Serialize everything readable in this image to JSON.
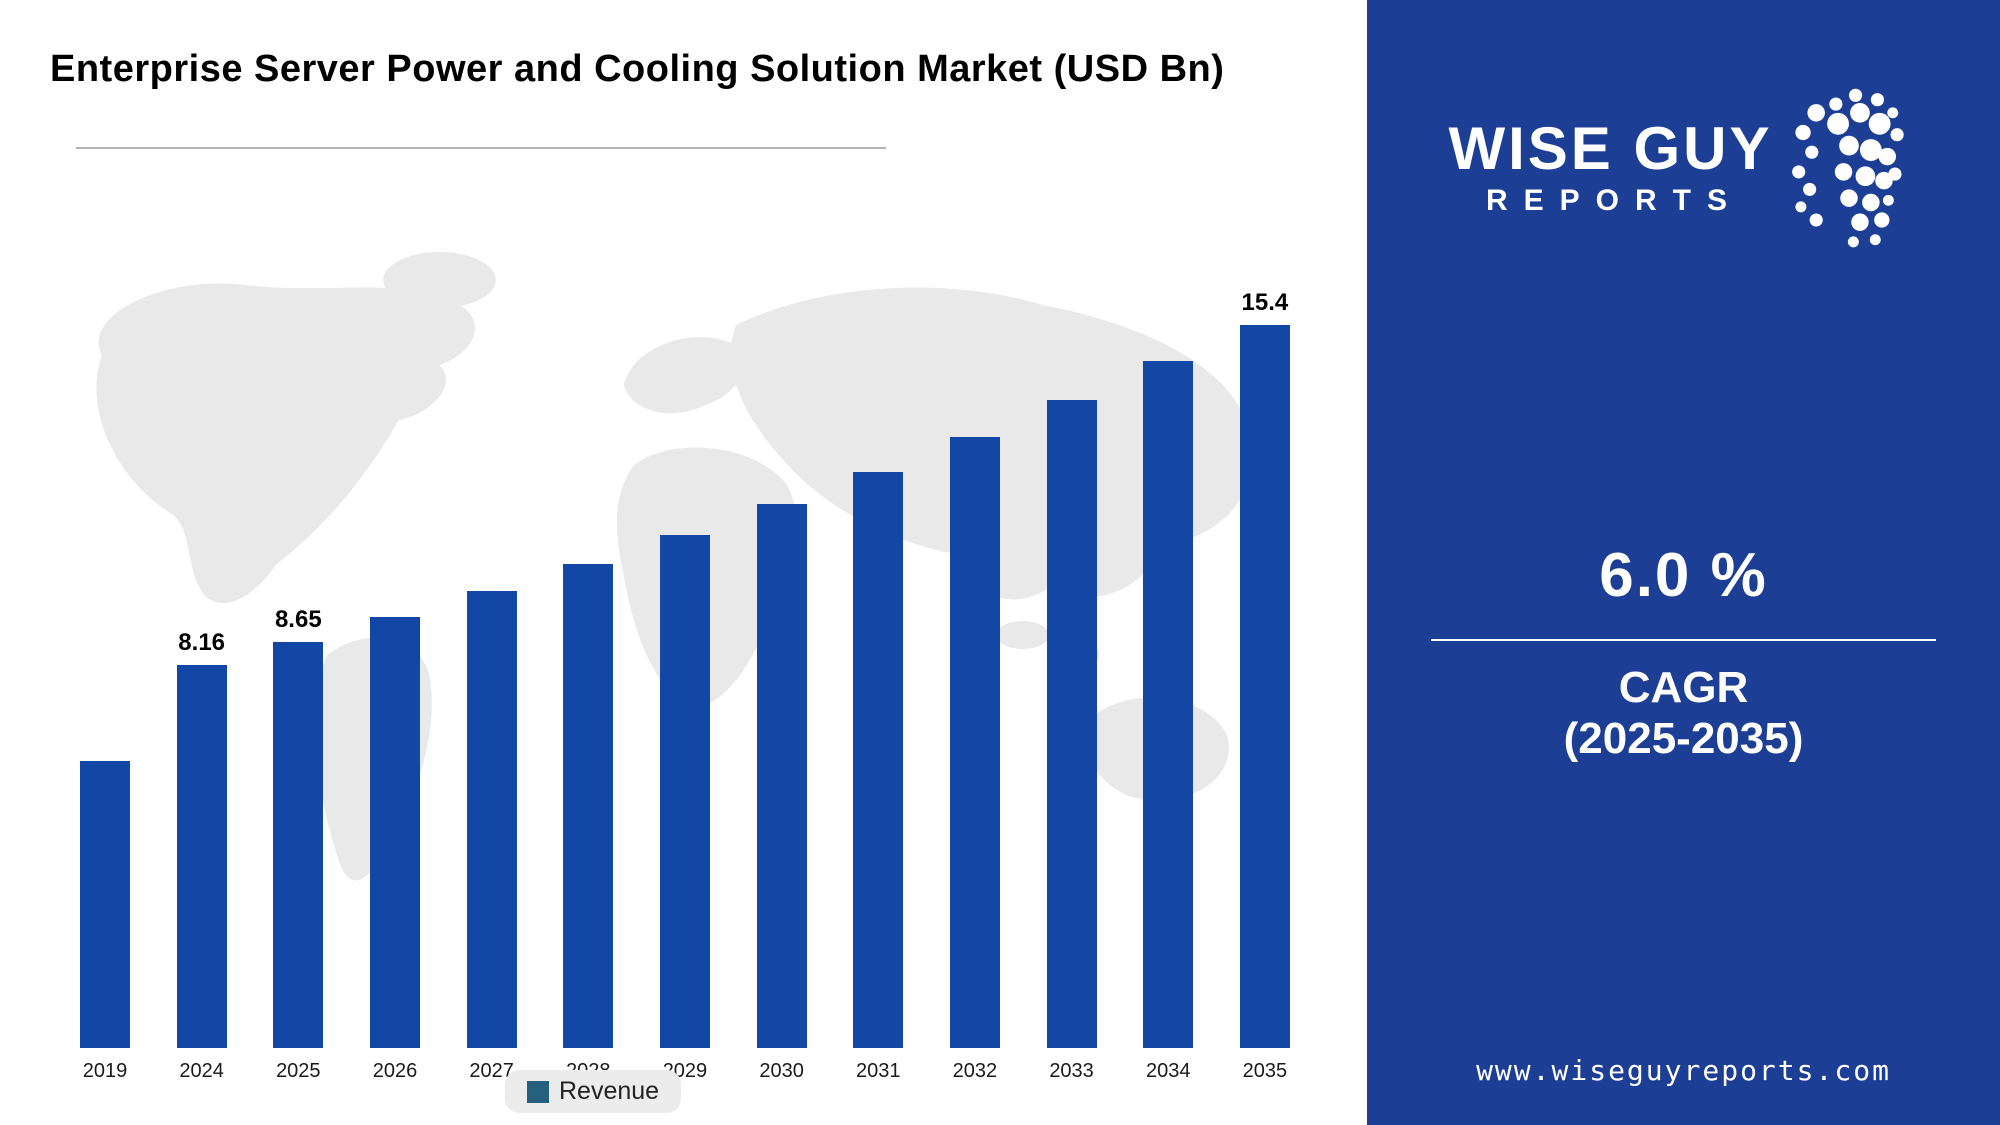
{
  "title": "Enterprise Server Power and Cooling Solution Market (USD Bn)",
  "chart_data": {
    "type": "bar",
    "title": "Enterprise Server Power and Cooling Solution Market (USD Bn)",
    "categories": [
      "2019",
      "2024",
      "2025",
      "2026",
      "2027",
      "2028",
      "2029",
      "2030",
      "2031",
      "2032",
      "2033",
      "2034",
      "2035"
    ],
    "values": [
      6.1,
      8.16,
      8.65,
      9.17,
      9.72,
      10.3,
      10.92,
      11.58,
      12.27,
      13.01,
      13.79,
      14.62,
      15.4
    ],
    "data_labels": [
      "",
      "8.16",
      "8.65",
      "",
      "",
      "",
      "",
      "",
      "",
      "",
      "",
      "",
      "15.4"
    ],
    "series_name": "Revenue",
    "bar_color": "#1347a5",
    "xlabel": "",
    "ylabel": "",
    "ylim": [
      0,
      16.5
    ],
    "grid": false,
    "legend_position": "bottom"
  },
  "legend": {
    "label": "Revenue",
    "swatch_color": "#25617f"
  },
  "sidebar": {
    "background": "#1c3e94",
    "logo": {
      "line1": "WISE GUY",
      "line2": "REPORTS"
    },
    "cagr_value": "6.0 %",
    "cagr_label_line1": "CAGR",
    "cagr_label_line2": "(2025-2035)",
    "website": "www.wiseguyreports.com"
  }
}
